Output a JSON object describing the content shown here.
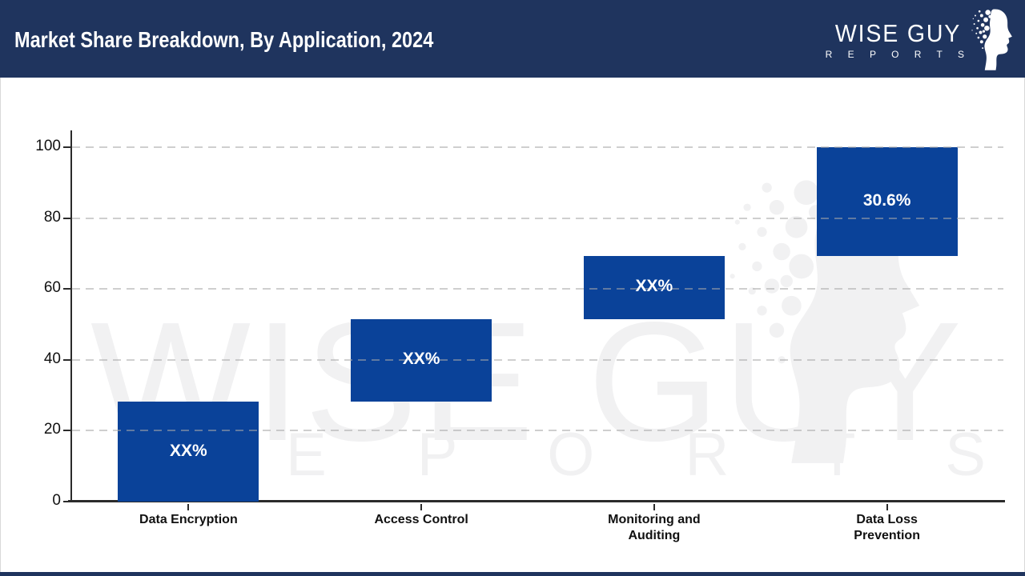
{
  "header": {
    "title": "Market Share Breakdown, By Application, 2024",
    "logo": {
      "name": "WISE GUY",
      "subtitle": "R E P O R T S"
    }
  },
  "watermark": {
    "line1": "WISE GUY",
    "line2": "R E P O R T S"
  },
  "colors": {
    "header_bg": "#1F345E",
    "bar": "#0A4299",
    "bar_label_text": "#FFFFFF",
    "grid": "#A8A8A8",
    "axis": "#2B2B2B",
    "tick_text": "#111111",
    "watermark": "#F1F1F2"
  },
  "chart_data": {
    "type": "bar",
    "subtype": "waterfall-floating-bars",
    "title": "Market Share Breakdown, By Application, 2024",
    "categories": [
      "Data Encryption",
      "Access Control",
      "Monitoring and\nAuditing",
      "Data Loss\nPrevention"
    ],
    "segments": [
      {
        "category": "Data Encryption",
        "start": 0,
        "end": 28.2,
        "label": "XX%"
      },
      {
        "category": "Access Control",
        "start": 28.2,
        "end": 51.5,
        "label": "XX%"
      },
      {
        "category": "Monitoring and Auditing",
        "start": 51.5,
        "end": 69.4,
        "label": "XX%"
      },
      {
        "category": "Data Loss Prevention",
        "start": 69.4,
        "end": 100,
        "label": "30.6%"
      }
    ],
    "yticks": [
      0,
      20,
      40,
      60,
      80,
      100
    ],
    "ylim": [
      0,
      104
    ],
    "xlabel": "",
    "ylabel": "",
    "grid": "horizontal-dashed",
    "legend_position": "none"
  }
}
